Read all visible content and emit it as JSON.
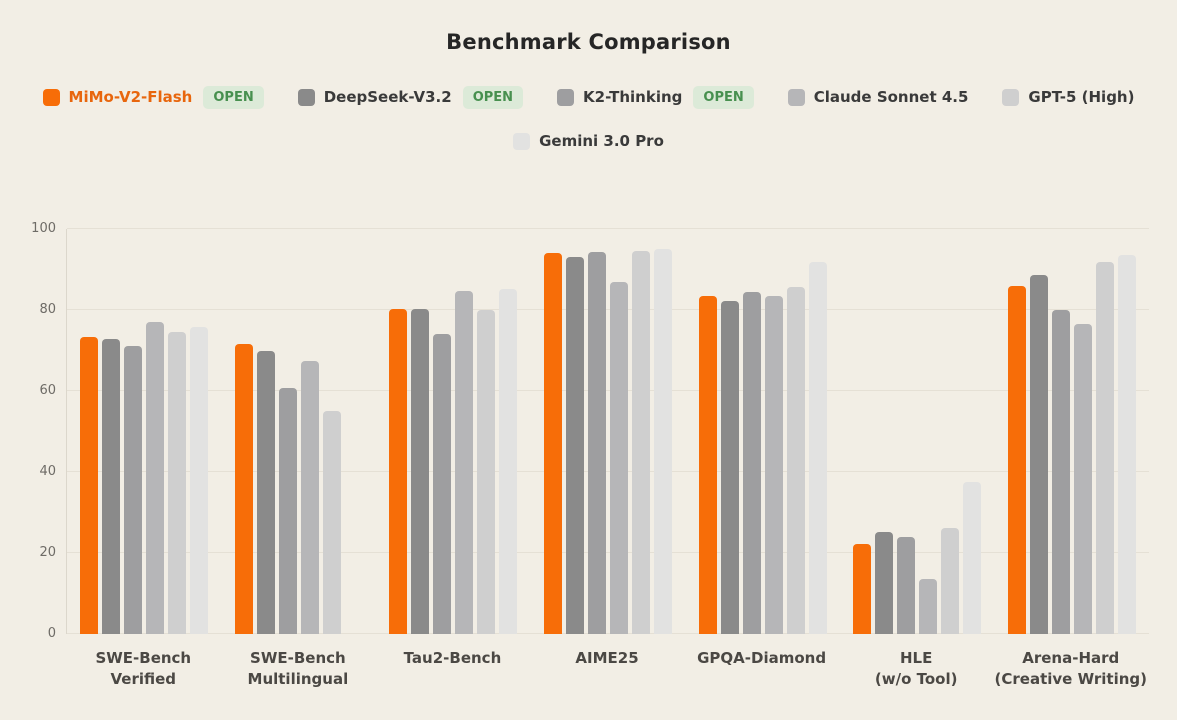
{
  "title": "Benchmark Comparison",
  "colors": {
    "background": "#f2eee5",
    "accent_orange": "#f76d08",
    "orange_label_text": "#e8660d",
    "open_badge_bg": "#dcead8",
    "open_badge_text": "#47904f",
    "gridline": "#e5e0d5",
    "axis_line": "#dcd7cc",
    "tick_text": "#6e6b66",
    "category_text": "#4b4844",
    "title_text": "#262626"
  },
  "legend": {
    "open_label": "OPEN",
    "rows": [
      [
        {
          "name": "MiMo-V2-Flash",
          "color": "#f76d08",
          "label_color": "#e8660d",
          "open": true
        },
        {
          "name": "DeepSeek-V3.2",
          "color": "#8a8a8a",
          "label_color": "#3a3a3a",
          "open": true
        },
        {
          "name": "K2-Thinking",
          "color": "#9e9ea0",
          "label_color": "#3a3a3a",
          "open": true
        },
        {
          "name": "Claude Sonnet 4.5",
          "color": "#b6b6b8",
          "label_color": "#3a3a3a",
          "open": false
        },
        {
          "name": "GPT-5 (High)",
          "color": "#cfcfcf",
          "label_color": "#3a3a3a",
          "open": false
        }
      ],
      [
        {
          "name": "Gemini 3.0 Pro",
          "color": "#e2e2e1",
          "label_color": "#3a3a3a",
          "open": false
        }
      ]
    ]
  },
  "chart_data": {
    "type": "bar",
    "title": "Benchmark Comparison",
    "xlabel": "",
    "ylabel": "",
    "ylim": [
      0,
      100
    ],
    "yticks": [
      0,
      20,
      40,
      60,
      80,
      100
    ],
    "grid": true,
    "legend_position": "top",
    "categories": [
      "SWE-Bench\nVerified",
      "SWE-Bench\nMultilingual",
      "Tau2-Bench",
      "AIME25",
      "GPQA-Diamond",
      "HLE\n(w/o Tool)",
      "Arena-Hard\n(Creative Writing)"
    ],
    "series": [
      {
        "name": "MiMo-V2-Flash",
        "color": "#f76d08",
        "open": true,
        "values": [
          73.3,
          71.5,
          80.2,
          94.0,
          83.5,
          22.2,
          86.0
        ]
      },
      {
        "name": "DeepSeek-V3.2",
        "color": "#8a8a8a",
        "open": true,
        "values": [
          72.8,
          69.8,
          80.2,
          93.0,
          82.2,
          25.3,
          88.6
        ]
      },
      {
        "name": "K2-Thinking",
        "color": "#9e9ea0",
        "open": true,
        "values": [
          71.0,
          60.7,
          74.0,
          94.4,
          84.5,
          23.9,
          80.0
        ]
      },
      {
        "name": "Claude Sonnet 4.5",
        "color": "#b6b6b8",
        "open": false,
        "values": [
          77.0,
          67.5,
          84.6,
          87.0,
          83.4,
          13.7,
          76.5
        ]
      },
      {
        "name": "GPT-5 (High)",
        "color": "#cfcfcf",
        "open": false,
        "values": [
          74.5,
          55.0,
          80.0,
          94.6,
          85.7,
          26.3,
          91.8
        ]
      },
      {
        "name": "Gemini 3.0 Pro",
        "color": "#e2e2e1",
        "open": false,
        "values": [
          75.8,
          null,
          85.3,
          95.0,
          91.9,
          37.5,
          93.6
        ]
      }
    ]
  }
}
